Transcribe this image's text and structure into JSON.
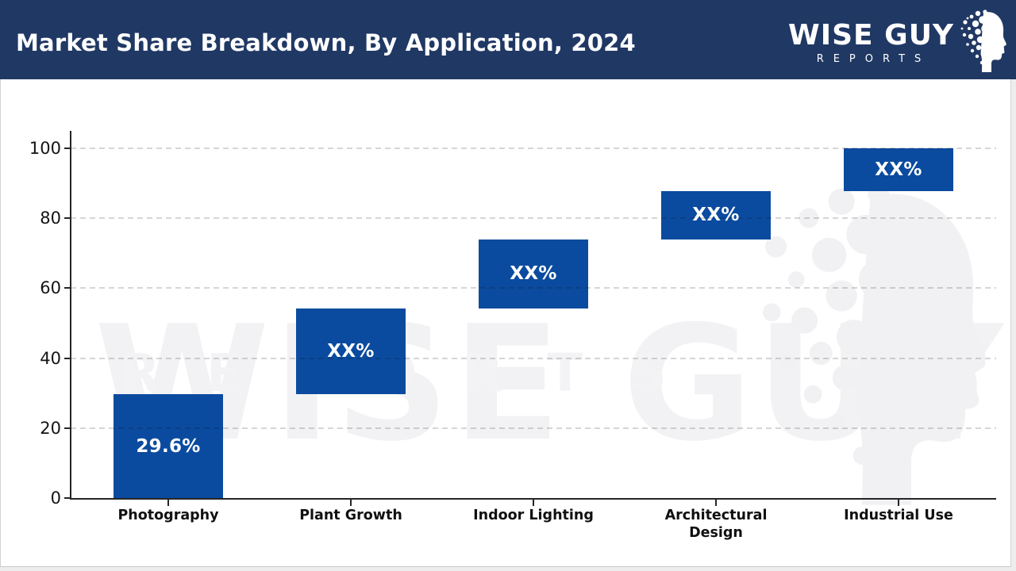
{
  "header": {
    "title": "Market Share Breakdown, By Application, 2024",
    "logo": {
      "name": "WISE GUY",
      "subtitle": "REPORTS"
    }
  },
  "watermark": {
    "line1": "WISE GUY",
    "line2": "REPORTS"
  },
  "colors": {
    "header_bg": "#203864",
    "bar": "#0b4b9f",
    "axis": "#262626",
    "label_text": "#ffffff"
  },
  "chart_data": {
    "type": "bar",
    "variant": "waterfall",
    "title": "Market Share Breakdown, By Application, 2024",
    "xlabel": "",
    "ylabel": "",
    "ylim": [
      0,
      100
    ],
    "yticks": [
      0,
      20,
      40,
      60,
      80,
      100
    ],
    "grid": "horizontal-dashed",
    "legend": false,
    "categories": [
      "Photography",
      "Plant Growth",
      "Indoor Lighting",
      "Architectural Design",
      "Industrial Use"
    ],
    "bars": [
      {
        "category": "Photography",
        "start": 0,
        "end": 29.6,
        "label": "29.6%"
      },
      {
        "category": "Plant Growth",
        "start": 29.6,
        "end": 54.2,
        "label": "XX%"
      },
      {
        "category": "Indoor Lighting",
        "start": 54.2,
        "end": 74.0,
        "label": "XX%"
      },
      {
        "category": "Architectural Design",
        "start": 74.0,
        "end": 87.8,
        "label": "XX%"
      },
      {
        "category": "Industrial Use",
        "start": 87.8,
        "end": 100,
        "label": "XX%"
      }
    ]
  }
}
